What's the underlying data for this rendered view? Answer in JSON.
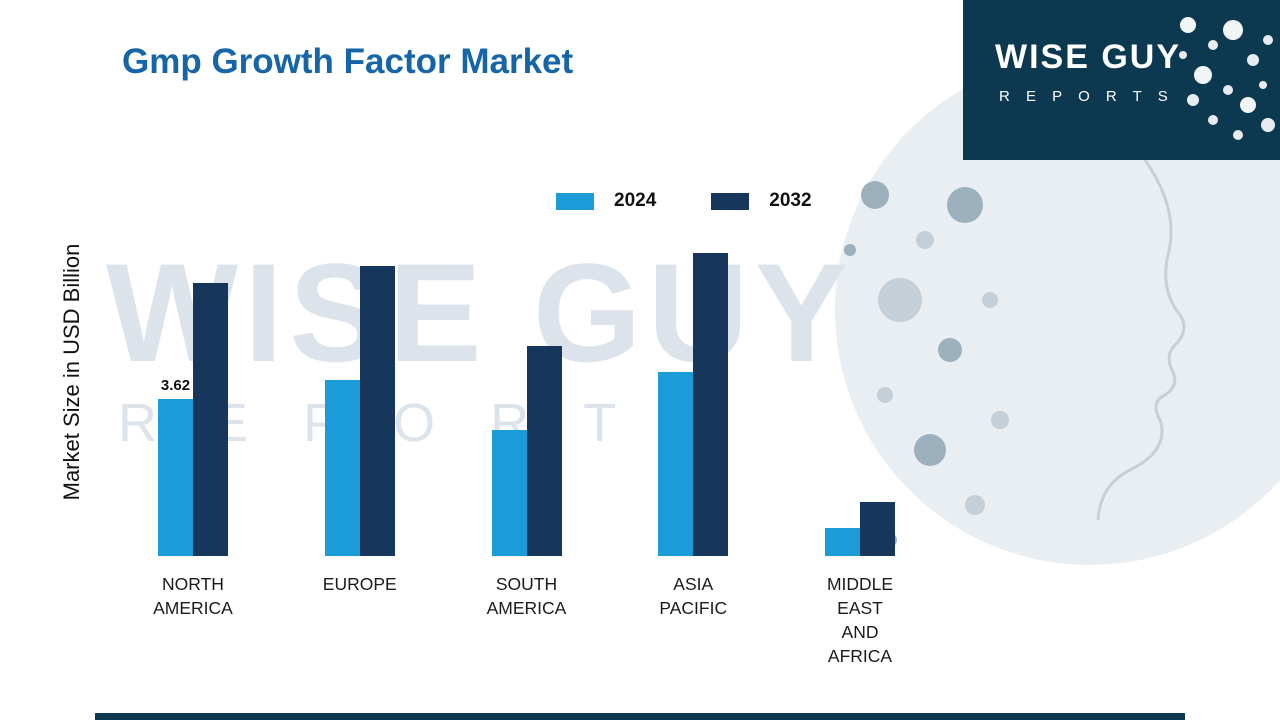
{
  "page": {
    "title": "Gmp Growth Factor Market"
  },
  "logo": {
    "name": "WISE GUY",
    "subtitle": "R E P O R T S"
  },
  "watermark": {
    "name": "WISE GUY",
    "subtitle": "R E P O R T S"
  },
  "colors": {
    "title": "#1565a8",
    "bar_2024": "#1b9bd7",
    "bar_2032": "#16365c",
    "logo_background": "#0d3950",
    "bottom_bar": "#0d3950",
    "watermark_text": "#dde3eb"
  },
  "chart_data": {
    "type": "bar",
    "title": "Gmp Growth Factor Market",
    "ylabel": "Market Size in USD Billion",
    "units": "USD Billion",
    "categories": [
      "NORTH\nAMERICA",
      "EUROPE",
      "SOUTH\nAMERICA",
      "ASIA\nPACIFIC",
      "MIDDLE\nEAST\nAND\nAFRICA"
    ],
    "series": [
      {
        "name": "2024",
        "color": "#1b9bd7",
        "values": [
          3.62,
          4.05,
          2.9,
          4.25,
          0.65
        ]
      },
      {
        "name": "2032",
        "color": "#16365c",
        "values": [
          6.3,
          6.7,
          4.85,
          7.0,
          1.25
        ]
      }
    ],
    "ylim": [
      0,
      7.2
    ],
    "grid": false,
    "legend_position": "top-center",
    "annotations": [
      {
        "category_index": 0,
        "series_index": 0,
        "text": "3.62"
      }
    ]
  }
}
